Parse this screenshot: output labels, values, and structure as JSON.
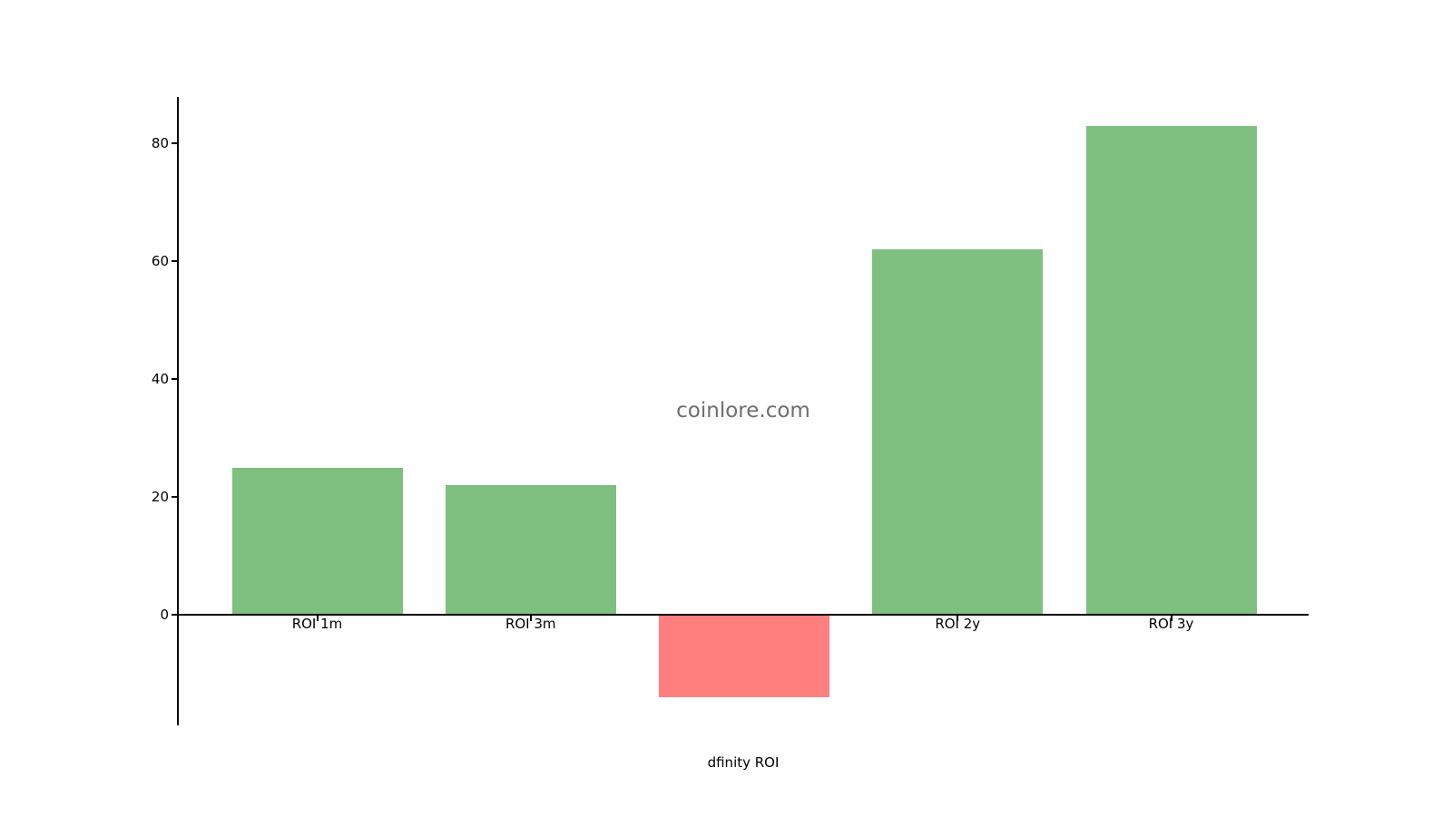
{
  "watermark": {
    "text": "coinlore.com",
    "color": "#6e6e6e"
  },
  "chart_data": {
    "type": "bar",
    "title": "",
    "xlabel": "dfinity ROI",
    "ylabel": "",
    "categories": [
      "ROI 1m",
      "ROI 3m",
      "",
      "ROI 2y",
      "ROI 3y"
    ],
    "values": [
      25,
      22,
      -14,
      62,
      83
    ],
    "bar_colors": [
      "#7fbf7f",
      "#7fbf7f",
      "#ff7f7f",
      "#7fbf7f",
      "#7fbf7f"
    ],
    "positive_color": "#7fbf7f",
    "negative_color": "#ff7f7f",
    "y_ticks": [
      0,
      20,
      40,
      60,
      80
    ],
    "ylim": [
      -18.8,
      87.8
    ],
    "grid": false,
    "legend": null,
    "axis_color": "#000000",
    "note": "third category label hidden behind negative bar"
  }
}
